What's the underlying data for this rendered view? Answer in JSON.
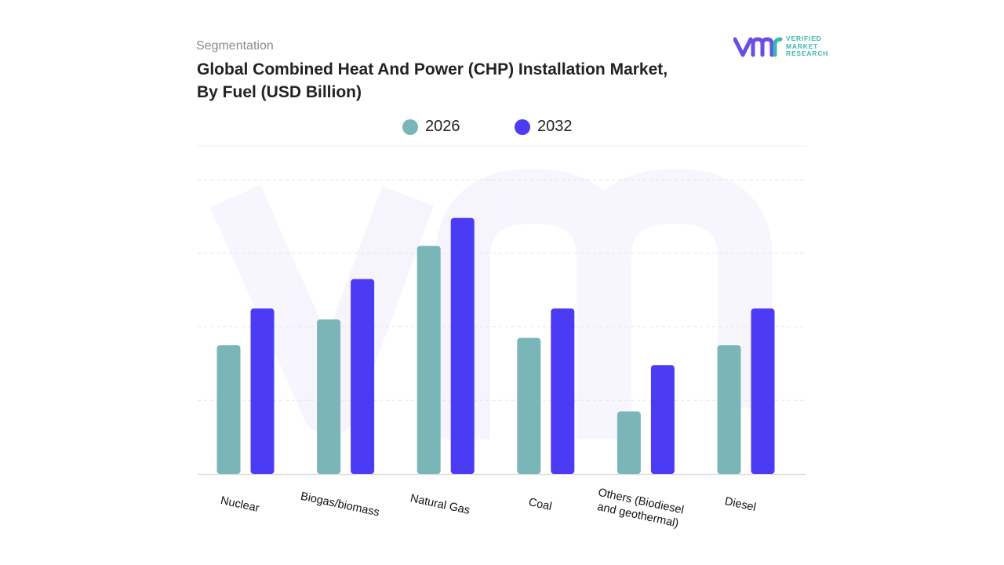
{
  "header": {
    "subtitle": "Segmentation",
    "title_line1": "Global Combined Heat And Power (CHP) Installation Market,",
    "title_line2": "By Fuel (USD Billion)"
  },
  "logo": {
    "mark": "vmr",
    "text_lines": [
      "VERIFIED",
      "MARKET",
      "RESEARCH"
    ],
    "registered": "®"
  },
  "colors": {
    "series_2026": "#7ab5b8",
    "series_2032": "#4b3bf5",
    "grid": "#e3e3e3",
    "logo_mark": "#6a4de8",
    "logo_text": "#3bb7b0"
  },
  "chart_data": {
    "type": "bar",
    "title": "Global Combined Heat And Power (CHP) Installation Market, By Fuel (USD Billion)",
    "categories": [
      [
        "Nuclear"
      ],
      [
        "Biogas/biomass"
      ],
      [
        "Natural Gas"
      ],
      [
        "Coal"
      ],
      [
        "Others (Biodiesel",
        "and geothermal)"
      ],
      [
        "Diesel"
      ]
    ],
    "series": [
      {
        "name": "2026",
        "values": [
          1.75,
          2.1,
          3.1,
          1.85,
          0.85,
          1.75
        ]
      },
      {
        "name": "2032",
        "values": [
          2.25,
          2.65,
          3.48,
          2.25,
          1.48,
          2.25
        ]
      }
    ],
    "ylim": [
      0,
      4
    ],
    "grid": true,
    "legend": "top-center",
    "tick_label_rotation_deg": 12
  }
}
